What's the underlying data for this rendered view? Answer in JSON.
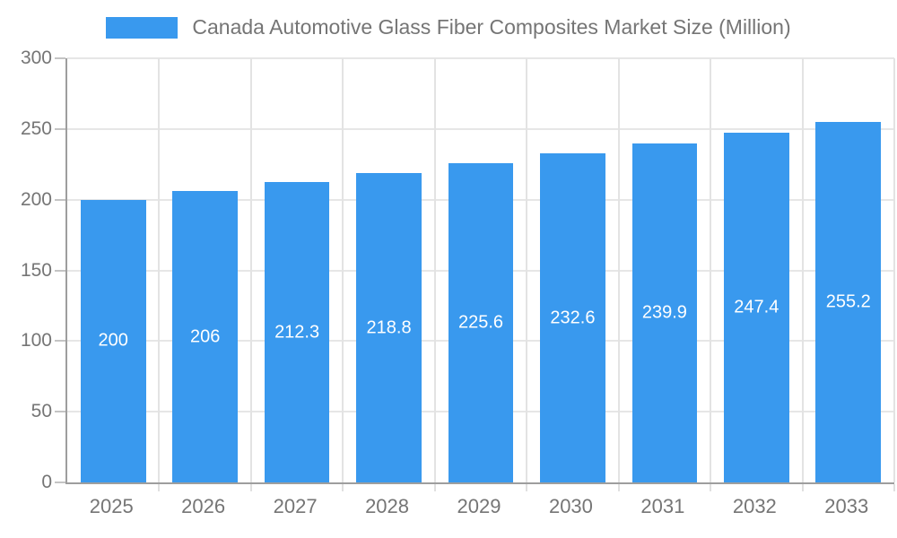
{
  "legend": {
    "label": "Canada Automotive Glass Fiber Composites Market Size (Million)"
  },
  "chart_data": {
    "type": "bar",
    "title": "Canada Automotive Glass Fiber Composites Market Size (Million)",
    "categories": [
      "2025",
      "2026",
      "2027",
      "2028",
      "2029",
      "2030",
      "2031",
      "2032",
      "2033"
    ],
    "series": [
      {
        "name": "Canada Automotive Glass Fiber Composites Market Size (Million)",
        "values": [
          200,
          206,
          212.3,
          218.8,
          225.6,
          232.6,
          239.9,
          247.4,
          255.2
        ],
        "value_labels": [
          "200",
          "206",
          "212.3",
          "218.8",
          "225.6",
          "232.6",
          "239.9",
          "247.4",
          "255.2"
        ]
      }
    ],
    "ylim": [
      0,
      300
    ],
    "yticks": [
      0,
      50,
      100,
      150,
      200,
      250,
      300
    ],
    "grid": "on",
    "legend_position": "top",
    "bar_color": "#3999EE",
    "value_label_color": "#FFFFFF",
    "axis_text_color": "#757575"
  },
  "colors": {
    "bar": "#3999EE",
    "grid_horizontal": "#E6E6E6",
    "grid_vertical": "#E3E3E3",
    "axis_line": "#9E9E9E",
    "y_tick": "#C4C4C4",
    "x_tick": "#E0E0E0",
    "text": "#757575",
    "background": "#FFFFFF"
  }
}
